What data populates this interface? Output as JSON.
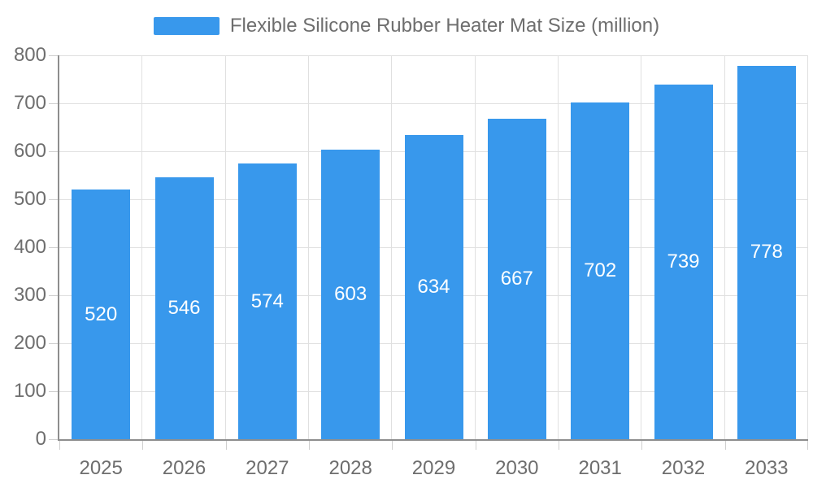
{
  "chart_data": {
    "type": "bar",
    "title": "",
    "legend": "Flexible Silicone Rubber Heater Mat Size (million)",
    "legend_position": "top-center",
    "series_name": "Flexible Silicone Rubber Heater Mat Size (million)",
    "categories": [
      "2025",
      "2026",
      "2027",
      "2028",
      "2029",
      "2030",
      "2031",
      "2032",
      "2033"
    ],
    "values": [
      520,
      546,
      574,
      603,
      634,
      667,
      702,
      739,
      778
    ],
    "xlabel": "",
    "ylabel": "",
    "ylim": [
      0,
      800
    ],
    "ytick_step": 100,
    "yticks": [
      0,
      100,
      200,
      300,
      400,
      500,
      600,
      700,
      800
    ],
    "grid": true,
    "value_labels": "inside-middle",
    "colors": {
      "bar": "#3898EC",
      "bar_value_label": "#FFFFFF",
      "grid_line": "#E0E0E0",
      "axis_line": "#8E8E8E",
      "tick_mark": "#CFCFCF",
      "axis_text": "#6E6E6E",
      "legend_text": "#6E6E6E",
      "background": "#FFFFFF"
    }
  }
}
